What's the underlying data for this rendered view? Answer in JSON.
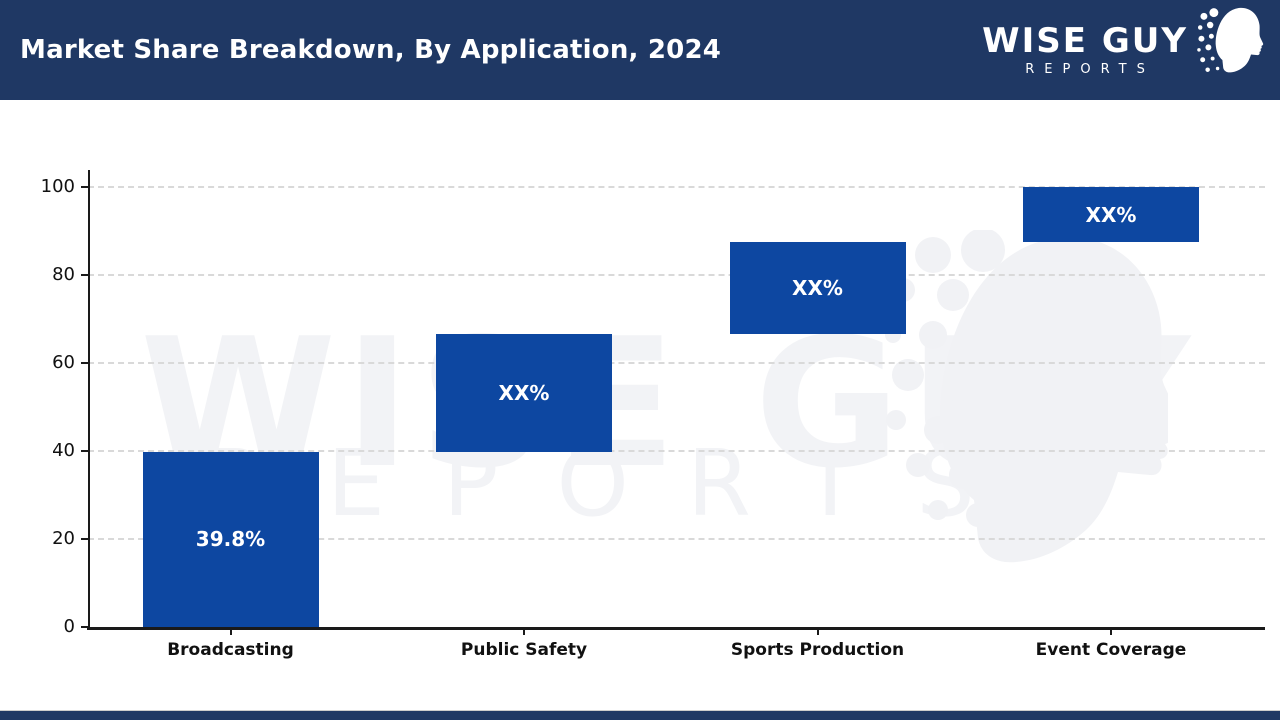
{
  "header": {
    "title": "Market Share Breakdown, By Application, 2024",
    "logo": {
      "line1": "WISE GUY",
      "line2": "REPORTS"
    }
  },
  "watermark": {
    "line1": "WISE GUY",
    "line2": "REPORTS"
  },
  "colors": {
    "header_bg": "#1f3864",
    "bar": "#0d47a1",
    "grid": "#d9d9d9",
    "axis": "#1a1a1a",
    "watermark": "#f2f3f6",
    "bar_label_text": "#ffffff"
  },
  "chart_data": {
    "type": "bar",
    "subtype": "waterfall",
    "title": "Market Share Breakdown, By Application, 2024",
    "categories": [
      "Broadcasting",
      "Public Safety",
      "Sports Production",
      "Event Coverage"
    ],
    "segments": [
      {
        "category": "Broadcasting",
        "start": 0,
        "end": 39.8,
        "label": "39.8%"
      },
      {
        "category": "Public Safety",
        "start": 39.8,
        "end": 66.5,
        "label": "XX%"
      },
      {
        "category": "Sports Production",
        "start": 66.5,
        "end": 87.4,
        "label": "XX%"
      },
      {
        "category": "Event Coverage",
        "start": 87.4,
        "end": 100,
        "label": "XX%"
      }
    ],
    "xlabel": "",
    "ylabel": "",
    "ylim": [
      0,
      100
    ],
    "yticks": [
      0,
      20,
      40,
      60,
      80,
      100
    ],
    "grid": "dashed-horizontal",
    "legend": "none"
  }
}
